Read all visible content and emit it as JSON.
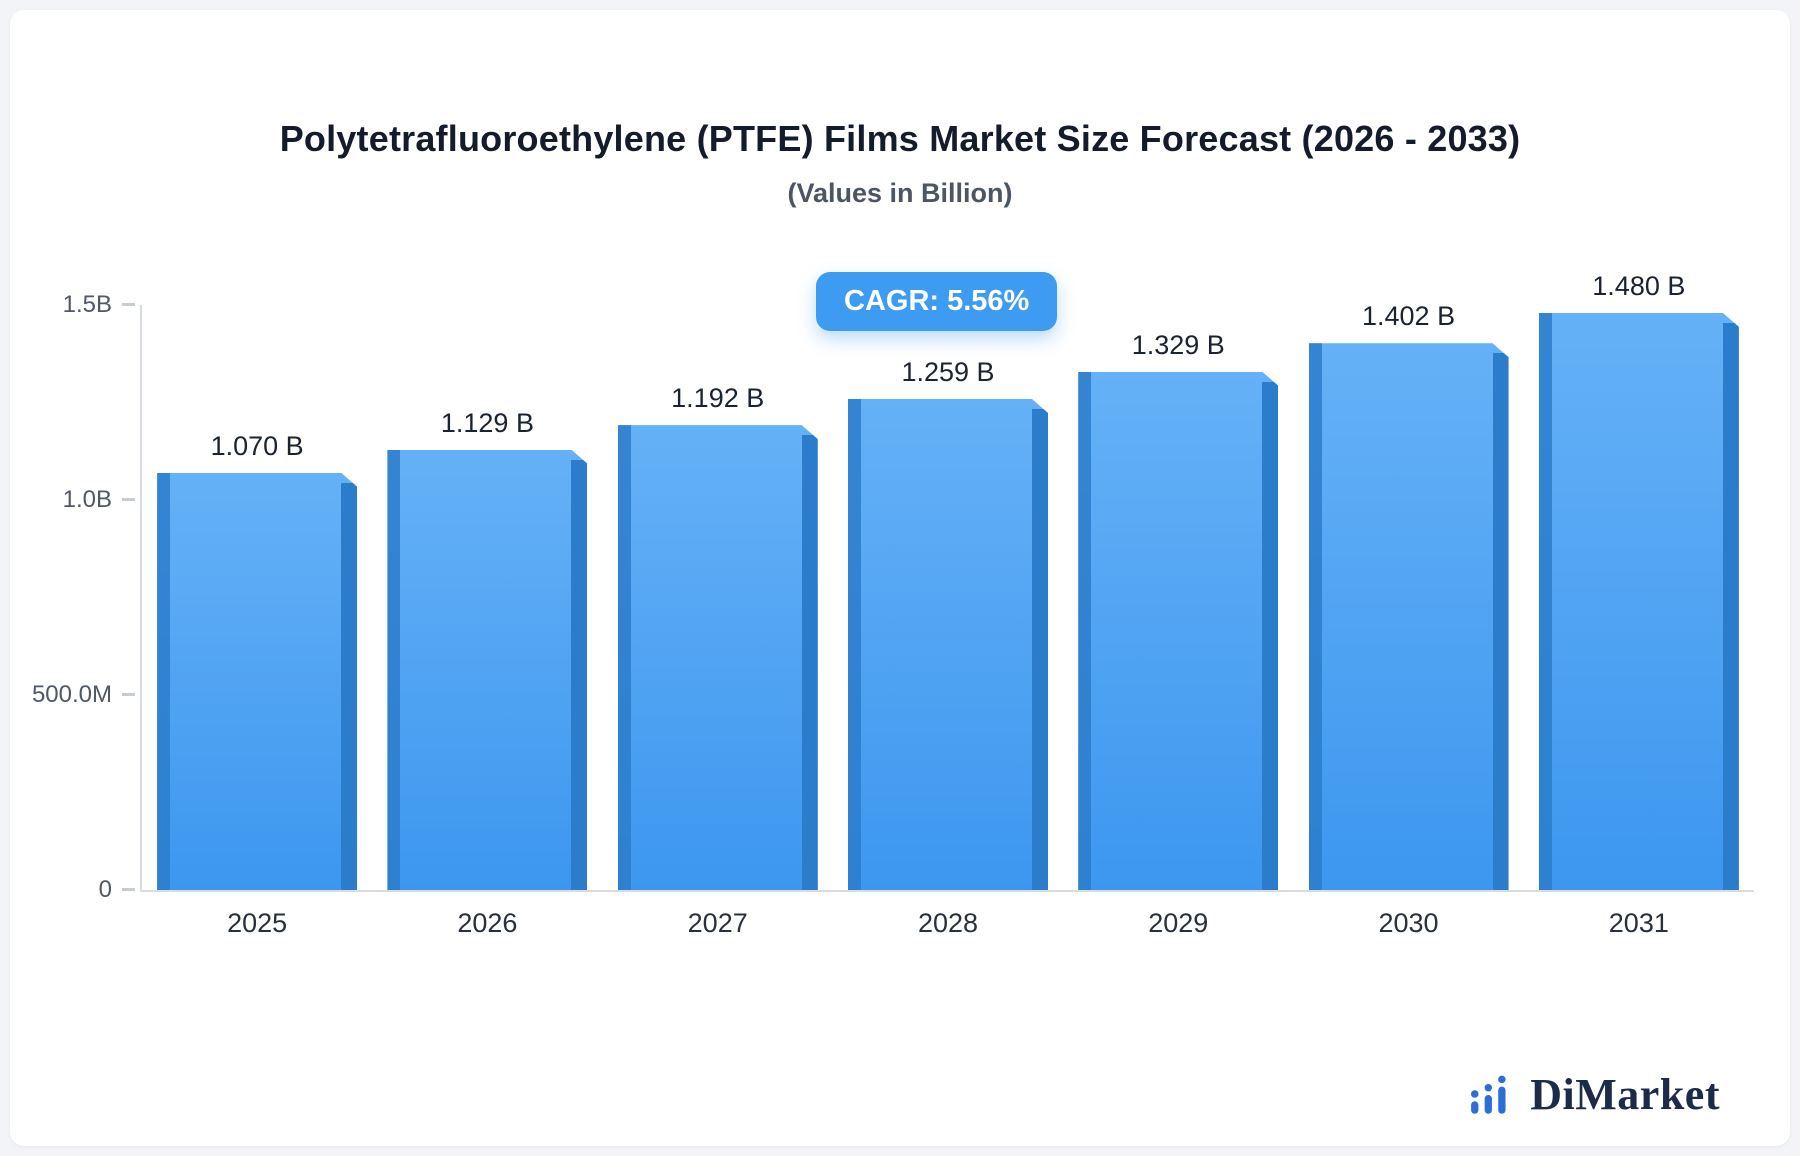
{
  "header": {
    "title": "Polytetrafluoroethylene (PTFE) Films Market Size Forecast (2026 - 2033)",
    "subtitle": "(Values in Billion)"
  },
  "badge": {
    "label": "CAGR: 5.56%"
  },
  "chart_data": {
    "type": "bar",
    "categories": [
      "2025",
      "2026",
      "2027",
      "2028",
      "2029",
      "2030",
      "2031"
    ],
    "values": [
      1.07,
      1.129,
      1.192,
      1.259,
      1.329,
      1.402,
      1.48
    ],
    "value_labels": [
      "1.070 B",
      "1.129 B",
      "1.192 B",
      "1.259 B",
      "1.329 B",
      "1.402 B",
      "1.480 B"
    ],
    "title": "Polytetrafluoroethylene (PTFE) Films Market Size Forecast (2026 - 2033)",
    "subtitle": "(Values in Billion)",
    "xlabel": "",
    "ylabel": "",
    "ylim": [
      0,
      1.5
    ],
    "yticks": [
      {
        "value": 0,
        "label": "0"
      },
      {
        "value": 0.5,
        "label": "500.0M"
      },
      {
        "value": 1.0,
        "label": "1.0B"
      },
      {
        "value": 1.5,
        "label": "1.5B"
      }
    ],
    "grid": false,
    "legend": "none",
    "annotation": "CAGR: 5.56%"
  },
  "colors": {
    "accent_blue": "#3E9BF2",
    "bar_face_top": "#65B1F7",
    "bar_face_bottom": "#3D97EF",
    "bar_side": "#2B7CCB",
    "axis_line": "#D7DBE2",
    "logo_blue": "#2B6FD6",
    "logo_navy": "#1C2B4A"
  },
  "logo": {
    "text": "DiMarket",
    "icon": "bar-chart-dots-icon"
  }
}
